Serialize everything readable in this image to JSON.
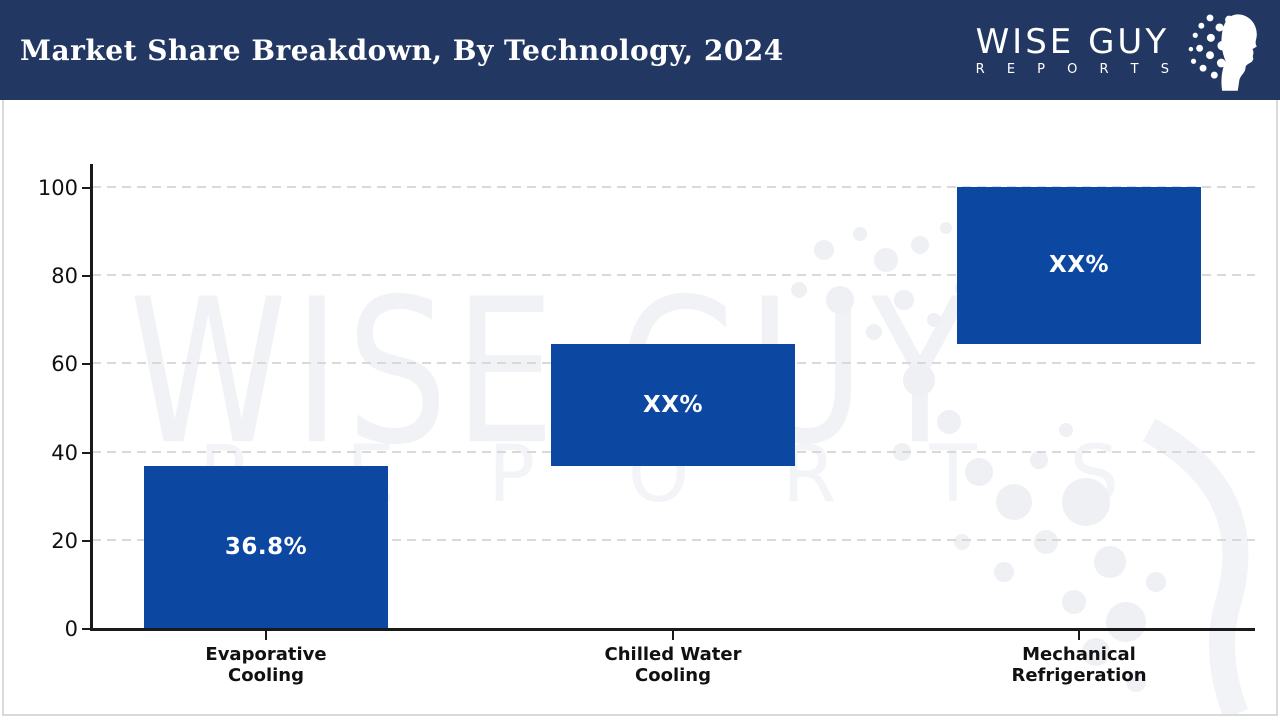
{
  "header": {
    "title": "Market Share Breakdown, By Technology, 2024",
    "logo": {
      "line1": "WISE GUY",
      "line2": "R E P O R T S"
    }
  },
  "watermark": {
    "line1": "WISE GUY",
    "line2": "R E P O R T S"
  },
  "chart_data": {
    "type": "bar",
    "subtype": "waterfall",
    "title": "Market Share Breakdown, By Technology, 2024",
    "categories": [
      "Evaporative\nCooling",
      "Chilled Water\nCooling",
      "Mechanical\nRefrigeration"
    ],
    "segments": [
      {
        "category": "Evaporative Cooling",
        "start": 0,
        "end": 36.8,
        "label": "36.8%"
      },
      {
        "category": "Chilled Water Cooling",
        "start": 36.8,
        "end": 64.5,
        "label": "XX%"
      },
      {
        "category": "Mechanical Refrigeration",
        "start": 64.5,
        "end": 100,
        "label": "XX%"
      }
    ],
    "ylabel": "",
    "xlabel": "",
    "yticks": [
      0,
      20,
      40,
      60,
      80,
      100
    ],
    "ylim": [
      0,
      105
    ],
    "grid": "horizontal-dashed",
    "legend": "none",
    "colors": {
      "bar": "#0c47a1",
      "bar_label": "#ffffff",
      "header_navy": "#223862",
      "gridline": "#d9d9d9",
      "axis": "#1a1a1a",
      "tick_text": "#111111",
      "watermark": "#f1f2f5"
    }
  }
}
